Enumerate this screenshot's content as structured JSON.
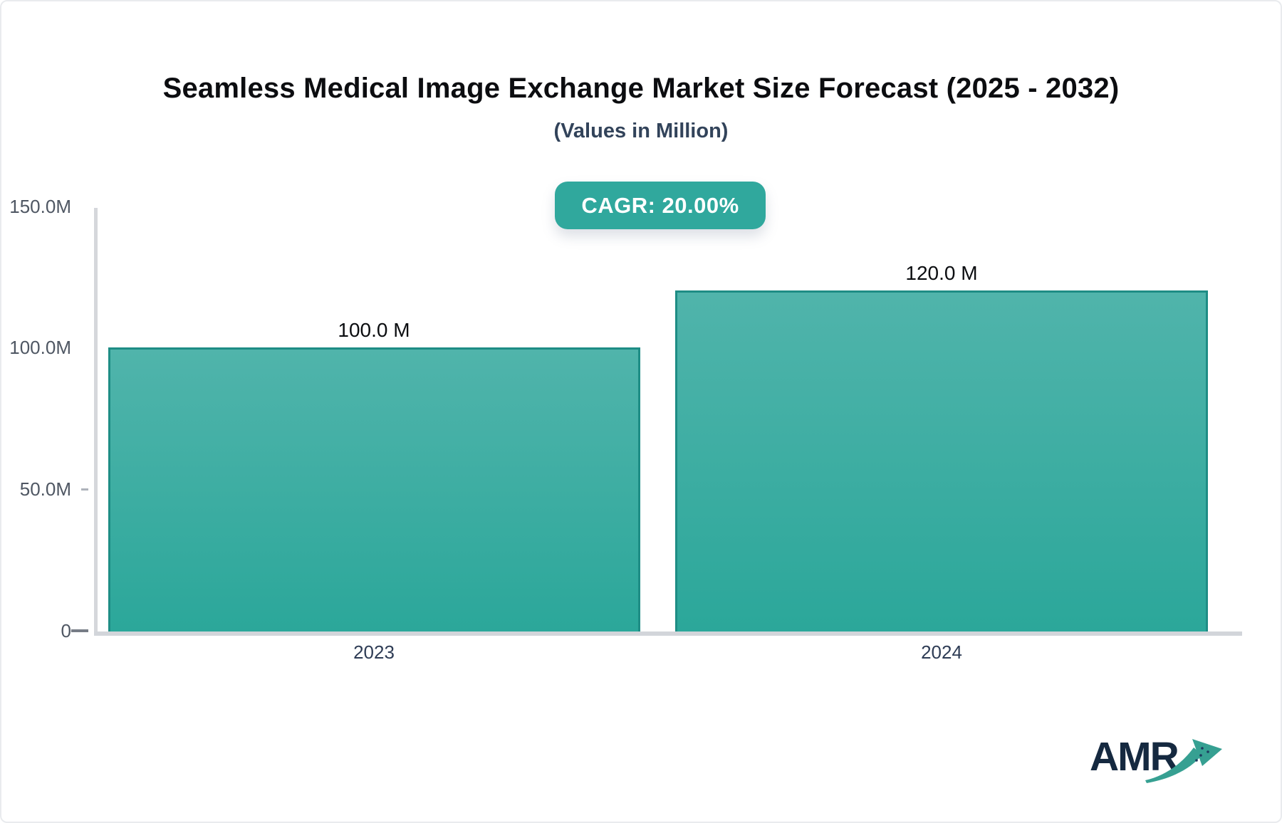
{
  "header": {
    "title": "Seamless Medical Image Exchange Market Size Forecast (2025 - 2032)",
    "subtitle": "(Values in Million)",
    "cagr_badge_label": "CAGR: 20.00%"
  },
  "chart_data": {
    "type": "bar",
    "title": "Seamless Medical Image Exchange Market Size Forecast (2025 - 2032)",
    "subtitle": "(Values in Million)",
    "unit": "Million",
    "categories": [
      "2023",
      "2024"
    ],
    "values": [
      100.0,
      120.0
    ],
    "value_labels": [
      "100.0 M",
      "120.0 M"
    ],
    "y_tick_labels": [
      "150.0M",
      "100.0M",
      "50.0M",
      "0"
    ],
    "ylim": [
      0,
      150
    ],
    "cagr_percent": 20.0,
    "grid": "off",
    "legend": "none",
    "colors": {
      "bar_gradient_top": "#50b4ab",
      "bar_gradient_bottom": "#2ba79a",
      "bar_border": "#1e8d85",
      "badge_background": "#30a89d",
      "axis_line": "#d5d7db",
      "title_text": "#0c0d10",
      "subtitle_text": "#32435a"
    }
  },
  "logo": {
    "text": "AMR",
    "color": "#152940",
    "arrow_color": "#36a092"
  }
}
